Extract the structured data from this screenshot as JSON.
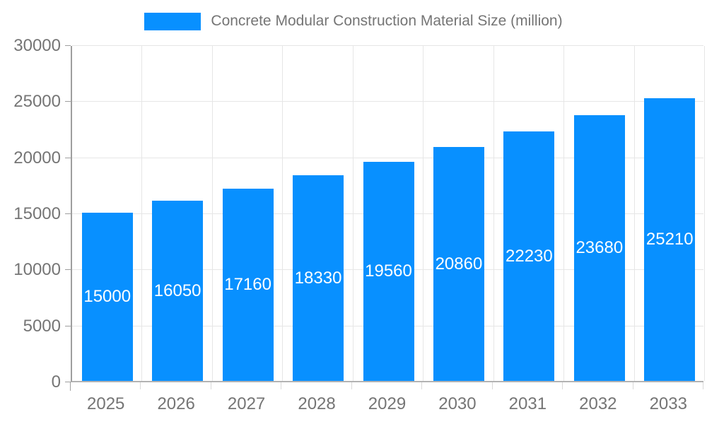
{
  "chart_data": {
    "type": "bar",
    "series_name": "Concrete Modular Construction Material Size (million)",
    "categories": [
      "2025",
      "2026",
      "2027",
      "2028",
      "2029",
      "2030",
      "2031",
      "2032",
      "2033"
    ],
    "values": [
      15000,
      16050,
      17160,
      18330,
      19560,
      20860,
      22230,
      23680,
      25210
    ],
    "ylim": [
      0,
      30000
    ],
    "yticks": [
      0,
      5000,
      10000,
      15000,
      20000,
      25000,
      30000
    ],
    "legend_position": "top",
    "grid": "on",
    "data_labels": "inside-center",
    "colors": {
      "bar": "#0890FF",
      "bar_label": "#FFFFFF",
      "axis_text": "#757575",
      "grid_line": "#E6E6E6",
      "y_axis_line": "#9E9E9E",
      "x_axis_line": "#B3B3B3",
      "y_tick": "#9E9E9E",
      "x_tick": "#D9D9D9"
    }
  }
}
